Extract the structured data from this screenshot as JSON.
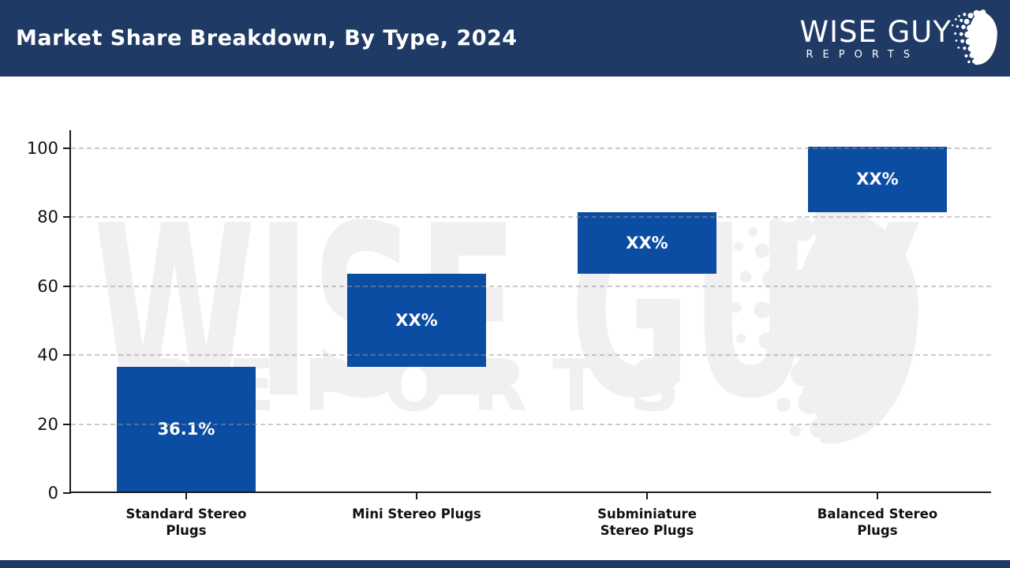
{
  "header": {
    "title": "Market Share Breakdown, By Type, 2024",
    "bg_color": "#203a66",
    "logo": {
      "wordmark": "WISE GUY",
      "subtext": "REPORTS"
    }
  },
  "watermark": {
    "line1": "WISE GUY",
    "line2": "REPORTS"
  },
  "chart_data": {
    "type": "bar",
    "subtype": "floating-waterfall",
    "title": "Market Share Breakdown, By Type, 2024",
    "categories": [
      "Standard Stereo\nPlugs",
      "Mini Stereo Plugs",
      "Subminiature\nStereo Plugs",
      "Balanced Stereo\nPlugs"
    ],
    "segments": [
      {
        "category": "Standard Stereo Plugs",
        "start": 0,
        "end": 36.1,
        "label": "36.1%"
      },
      {
        "category": "Mini Stereo Plugs",
        "start": 36.1,
        "end": 63,
        "label": "XX%"
      },
      {
        "category": "Subminiature Stereo Plugs",
        "start": 63,
        "end": 81,
        "label": "XX%"
      },
      {
        "category": "Balanced Stereo Plugs",
        "start": 81,
        "end": 100,
        "label": "XX%"
      }
    ],
    "yticks": [
      0,
      20,
      40,
      60,
      80,
      100
    ],
    "ylim": [
      0,
      105
    ],
    "xlabel": "",
    "ylabel": "",
    "grid": {
      "axis": "y",
      "style": "dashed",
      "on_top": true
    },
    "legend": false,
    "bar_color": "#0b4da2",
    "bar_label_color": "#ffffff"
  },
  "footer": {
    "bg_color": "#203a66"
  }
}
